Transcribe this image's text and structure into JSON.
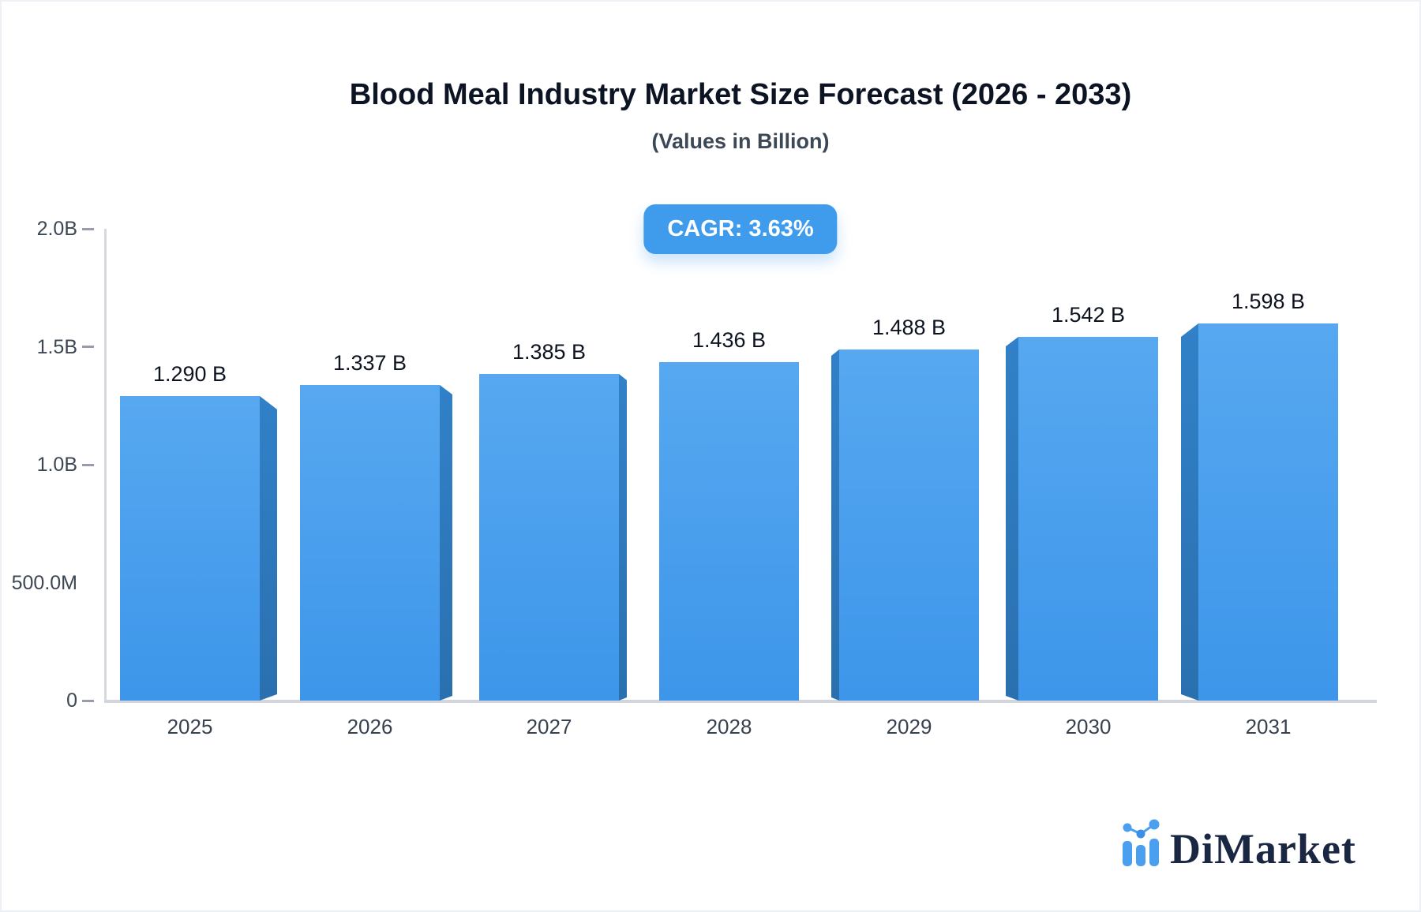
{
  "header": {
    "title": "Blood Meal Industry Market Size Forecast (2026 - 2033)",
    "subtitle": "(Values in Billion)",
    "cagr_badge": "CAGR: 3.63%"
  },
  "colors": {
    "bar_front_top": "#57a8f0",
    "bar_front_bottom": "#3d96ea",
    "bar_side": "#2d79bd",
    "badge_bg": "#3f9cec",
    "axis_line": "#d5d9df",
    "tick_text": "#3d4754",
    "logo_icon_blue": "#4aa0ee",
    "logo_text_navy": "#1a2742"
  },
  "y_axis": {
    "ticks": [
      {
        "label": "2.0B",
        "value": 2.0,
        "dash": true
      },
      {
        "label": "1.5B",
        "value": 1.5,
        "dash": true
      },
      {
        "label": "1.0B",
        "value": 1.0,
        "dash": true
      },
      {
        "label": "500.0M",
        "value": 0.5,
        "dash": false
      },
      {
        "label": "0",
        "value": 0.0,
        "dash": true
      }
    ]
  },
  "chart_data": {
    "type": "bar",
    "title": "Blood Meal Industry Market Size Forecast (2026 - 2033)",
    "subtitle": "(Values in Billion)",
    "categories": [
      "2025",
      "2026",
      "2027",
      "2028",
      "2029",
      "2030",
      "2031"
    ],
    "values": [
      1.29,
      1.337,
      1.385,
      1.436,
      1.488,
      1.542,
      1.598
    ],
    "value_labels": [
      "1.290 B",
      "1.337 B",
      "1.385 B",
      "1.436 B",
      "1.488 B",
      "1.542 B",
      "1.598 B"
    ],
    "unit": "B",
    "xlabel": "",
    "ylabel": "",
    "ylim": [
      0,
      2.0
    ],
    "grid": false,
    "legend": "none",
    "annotation": "CAGR: 3.63%"
  },
  "footer": {
    "brand": "DiMarket"
  }
}
